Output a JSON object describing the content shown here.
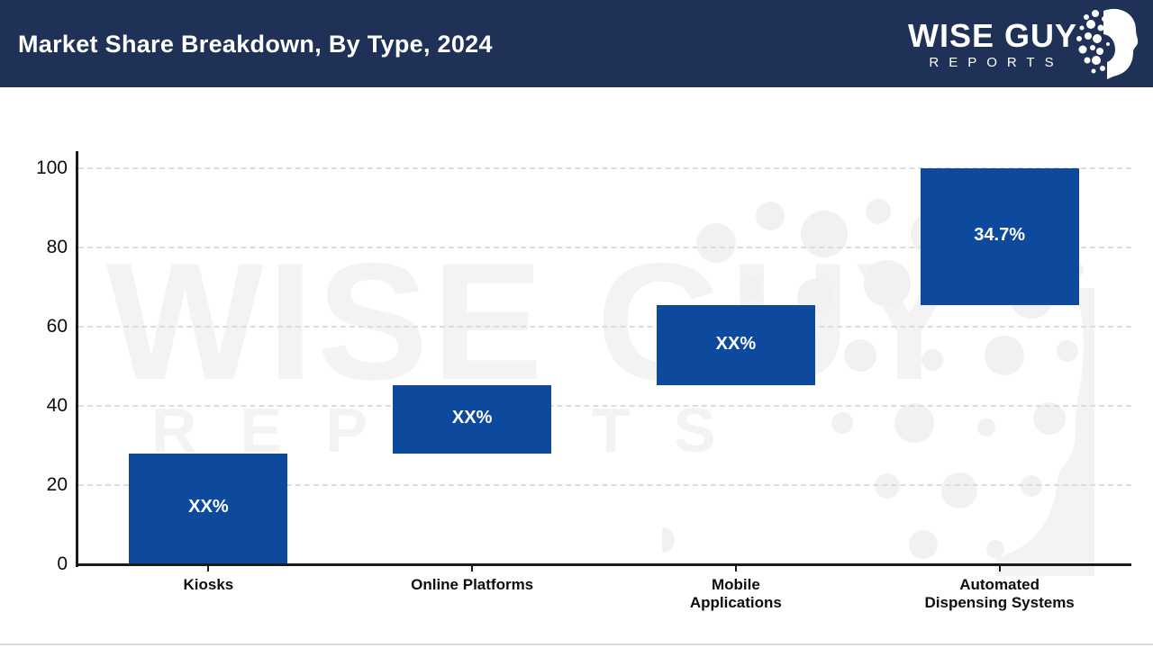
{
  "header": {
    "title": "Market Share Breakdown, By Type, 2024",
    "bg_color": "#1f3156"
  },
  "logo": {
    "wordmark": "WISE GUY",
    "reports": "REPORTS"
  },
  "watermark": {
    "wordmark": "WISE GUY",
    "reports": "REPORTS"
  },
  "chart_data": {
    "type": "bar",
    "subtype": "waterfall",
    "title": "Market Share Breakdown, By Type, 2024",
    "xlabel": "",
    "ylabel": "",
    "categories": [
      "Kiosks",
      "Online Platforms",
      "Mobile Applications",
      "Automated Dispensing Systems"
    ],
    "category_lines": [
      [
        "Kiosks"
      ],
      [
        "Online Platforms"
      ],
      [
        "Mobile",
        "Applications"
      ],
      [
        "Automated",
        "Dispensing Systems"
      ]
    ],
    "segments": [
      {
        "category": "Kiosks",
        "start": 0,
        "end": 28,
        "label": "XX%"
      },
      {
        "category": "Online Platforms",
        "start": 28,
        "end": 45.2,
        "label": "XX%"
      },
      {
        "category": "Mobile Applications",
        "start": 45.2,
        "end": 65.3,
        "label": "XX%"
      },
      {
        "category": "Automated Dispensing Systems",
        "start": 65.3,
        "end": 100,
        "label": "34.7%"
      }
    ],
    "ylim": [
      0,
      104
    ],
    "yticks": [
      0,
      20,
      40,
      60,
      80,
      100
    ],
    "grid": "horizontal dashed",
    "legend": "none",
    "bar_color": "#0d4a9e",
    "bar_label_color": "#ffffff",
    "grid_color": "#dcdcdc",
    "axis_color": "#1b1b1b",
    "tick_label_color": "#0d0d0d"
  }
}
